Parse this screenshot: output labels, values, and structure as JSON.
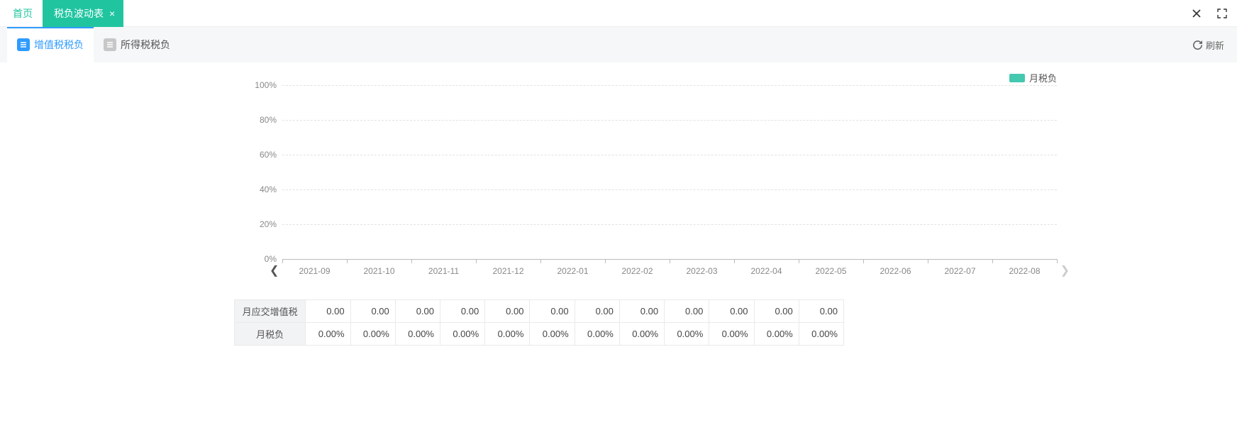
{
  "tabs": {
    "home": "首页",
    "page": "税负波动表"
  },
  "subtabs": {
    "vat": "增值税税负",
    "income": "所得税税负"
  },
  "actions": {
    "refresh": "刷新"
  },
  "chart": {
    "type": "bar",
    "legend_label": "月税负",
    "legend_color": "#45c8b0",
    "y_ticks": [
      "0%",
      "20%",
      "40%",
      "60%",
      "80%",
      "100%"
    ],
    "y_positions_pct": [
      100,
      80,
      60,
      40,
      20,
      0
    ],
    "x_labels": [
      "2021-09",
      "2021-10",
      "2021-11",
      "2021-12",
      "2022-01",
      "2022-02",
      "2022-03",
      "2022-04",
      "2022-05",
      "2022-06",
      "2022-07",
      "2022-08"
    ],
    "grid_color": "#e2e2e2",
    "axis_color": "#bbbbbb",
    "background_color": "#ffffff",
    "label_color": "#888888",
    "label_fontsize": 12
  },
  "table": {
    "row_labels": [
      "月应交增值税",
      "月税负"
    ],
    "rows": [
      [
        "0.00",
        "0.00",
        "0.00",
        "0.00",
        "0.00",
        "0.00",
        "0.00",
        "0.00",
        "0.00",
        "0.00",
        "0.00",
        "0.00"
      ],
      [
        "0.00%",
        "0.00%",
        "0.00%",
        "0.00%",
        "0.00%",
        "0.00%",
        "0.00%",
        "0.00%",
        "0.00%",
        "0.00%",
        "0.00%",
        "0.00%"
      ]
    ]
  }
}
